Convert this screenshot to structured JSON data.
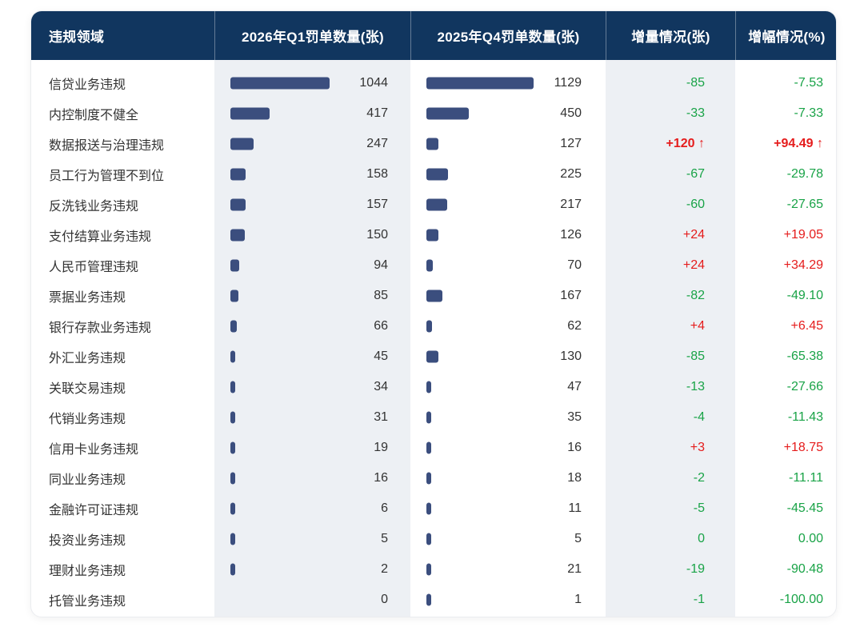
{
  "table": {
    "columns": {
      "area": "违规领域",
      "q1": "2026年Q1罚单数量(张)",
      "q4": "2025年Q4罚单数量(张)",
      "delta": "增量情况(张)",
      "pct": "增幅情况(%)"
    },
    "rows": [
      {
        "area": "信贷业务违规",
        "q1": 1044,
        "q4": 1129,
        "delta": "-85",
        "pct": "-7.53",
        "highlight": false
      },
      {
        "area": "内控制度不健全",
        "q1": 417,
        "q4": 450,
        "delta": "-33",
        "pct": "-7.33",
        "highlight": false
      },
      {
        "area": "数据报送与治理违规",
        "q1": 247,
        "q4": 127,
        "delta": "+120 ↑",
        "pct": "+94.49 ↑",
        "highlight": true
      },
      {
        "area": "员工行为管理不到位",
        "q1": 158,
        "q4": 225,
        "delta": "-67",
        "pct": "-29.78",
        "highlight": false
      },
      {
        "area": "反洗钱业务违规",
        "q1": 157,
        "q4": 217,
        "delta": "-60",
        "pct": "-27.65",
        "highlight": false
      },
      {
        "area": "支付结算业务违规",
        "q1": 150,
        "q4": 126,
        "delta": "+24",
        "pct": "+19.05",
        "highlight": false
      },
      {
        "area": "人民币管理违规",
        "q1": 94,
        "q4": 70,
        "delta": "+24",
        "pct": "+34.29",
        "highlight": false
      },
      {
        "area": "票据业务违规",
        "q1": 85,
        "q4": 167,
        "delta": "-82",
        "pct": "-49.10",
        "highlight": false
      },
      {
        "area": "银行存款业务违规",
        "q1": 66,
        "q4": 62,
        "delta": "+4",
        "pct": "+6.45",
        "highlight": false
      },
      {
        "area": "外汇业务违规",
        "q1": 45,
        "q4": 130,
        "delta": "-85",
        "pct": "-65.38",
        "highlight": false
      },
      {
        "area": "关联交易违规",
        "q1": 34,
        "q4": 47,
        "delta": "-13",
        "pct": "-27.66",
        "highlight": false
      },
      {
        "area": "代销业务违规",
        "q1": 31,
        "q4": 35,
        "delta": "-4",
        "pct": "-11.43",
        "highlight": false
      },
      {
        "area": "信用卡业务违规",
        "q1": 19,
        "q4": 16,
        "delta": "+3",
        "pct": "+18.75",
        "highlight": false
      },
      {
        "area": "同业业务违规",
        "q1": 16,
        "q4": 18,
        "delta": "-2",
        "pct": "-11.11",
        "highlight": false
      },
      {
        "area": "金融许可证违规",
        "q1": 6,
        "q4": 11,
        "delta": "-5",
        "pct": "-45.45",
        "highlight": false
      },
      {
        "area": "投资业务违规",
        "q1": 5,
        "q4": 5,
        "delta": "0",
        "pct": "0.00",
        "highlight": false
      },
      {
        "area": "理财业务违规",
        "q1": 2,
        "q4": 21,
        "delta": "-19",
        "pct": "-90.48",
        "highlight": false
      },
      {
        "area": "托管业务违规",
        "q1": 0,
        "q4": 1,
        "delta": "-1",
        "pct": "-100.00",
        "highlight": false
      }
    ]
  },
  "colors": {
    "header_bg": "#11365f",
    "bar": "#3b4e7e",
    "stripe_bg": "#edf0f4",
    "increase_red": "#e51c1c",
    "decrease_green": "#19a347"
  },
  "chart_data": {
    "type": "bar",
    "orientation": "horizontal",
    "title": "",
    "categories": [
      "信贷业务违规",
      "内控制度不健全",
      "数据报送与治理违规",
      "员工行为管理不到位",
      "反洗钱业务违规",
      "支付结算业务违规",
      "人民币管理违规",
      "票据业务违规",
      "银行存款业务违规",
      "外汇业务违规",
      "关联交易违规",
      "代销业务违规",
      "信用卡业务违规",
      "同业业务违规",
      "金融许可证违规",
      "投资业务违规",
      "理财业务违规",
      "托管业务违规"
    ],
    "series": [
      {
        "name": "2026年Q1罚单数量(张)",
        "values": [
          1044,
          417,
          247,
          158,
          157,
          150,
          94,
          85,
          66,
          45,
          34,
          31,
          19,
          16,
          6,
          5,
          2,
          0
        ]
      },
      {
        "name": "2025年Q4罚单数量(张)",
        "values": [
          1129,
          450,
          127,
          225,
          217,
          126,
          70,
          167,
          62,
          130,
          47,
          35,
          16,
          18,
          11,
          5,
          21,
          1
        ]
      },
      {
        "name": "增量情况(张)",
        "values": [
          -85,
          -33,
          120,
          -67,
          -60,
          24,
          24,
          -82,
          4,
          -85,
          -13,
          -4,
          3,
          -2,
          -5,
          0,
          -19,
          -1
        ]
      },
      {
        "name": "增幅情况(%)",
        "values": [
          -7.53,
          -7.33,
          94.49,
          -29.78,
          -27.65,
          19.05,
          34.29,
          -49.1,
          6.45,
          -65.38,
          -27.66,
          -11.43,
          18.75,
          -11.11,
          -45.45,
          0.0,
          -90.48,
          -100.0
        ]
      }
    ],
    "value_axis_max": 1129,
    "grid": false,
    "legend_position": "header-row"
  }
}
